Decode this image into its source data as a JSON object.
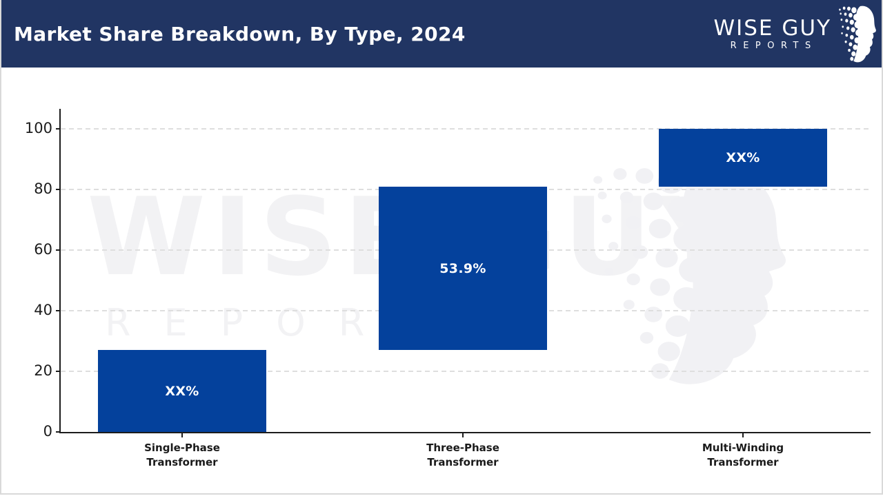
{
  "header": {
    "title": "Market Share Breakdown, By Type, 2024",
    "brand": {
      "name": "WISE GUY",
      "sub": "REPORTS",
      "head_icon": "dotted-head-profile-icon"
    }
  },
  "watermark": {
    "name": "WISE GUY",
    "sub": "REPORTS",
    "head_icon": "dotted-head-profile-icon"
  },
  "chart_data": {
    "type": "bar",
    "subtype": "floating-segment-waterfall",
    "title": "Market Share Breakdown, By Type, 2024",
    "categories": [
      "Single-Phase\nTransformer",
      "Three-Phase\nTransformer",
      "Multi-Winding\nTransformer"
    ],
    "segments": [
      {
        "category": "Single-Phase Transformer",
        "start": 0,
        "end": 27,
        "label": "XX%"
      },
      {
        "category": "Three-Phase Transformer",
        "start": 27,
        "end": 80.9,
        "label": "53.9%"
      },
      {
        "category": "Multi-Winding Transformer",
        "start": 80.9,
        "end": 100,
        "label": "XX%"
      }
    ],
    "xlabel": "",
    "ylabel": "",
    "ylim": [
      0,
      100
    ],
    "yticks": [
      0,
      20,
      40,
      60,
      80,
      100
    ],
    "grid": "horizontal-dashed",
    "legend": "none",
    "bar_color": "#04419c",
    "bar_label_color": "#ffffff"
  },
  "colors": {
    "header_bg": "#213563",
    "header_text": "#ffffff",
    "bar": "#04419c",
    "grid": "#dedede",
    "axis": "#1c1c1c",
    "watermark": "#f2f2f4",
    "page_border": "#d9d9d9",
    "background": "#ffffff"
  }
}
